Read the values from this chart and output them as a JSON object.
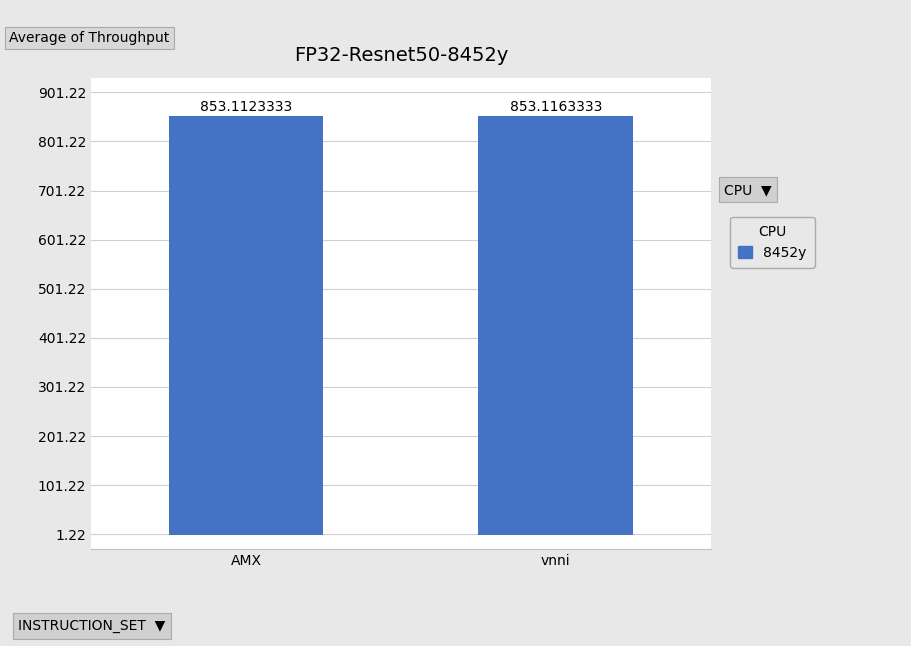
{
  "title": "FP32-Resnet50-8452y",
  "categories": [
    "AMX",
    "vnni"
  ],
  "values": [
    853.1123333,
    853.1163333
  ],
  "bar_color": "#4472C4",
  "ylabel_label": "Average of Throughput",
  "yticks": [
    1.22,
    101.22,
    201.22,
    301.22,
    401.22,
    501.22,
    601.22,
    701.22,
    801.22,
    901.22
  ],
  "ymin": 1.22,
  "ymax": 901.22,
  "xlabel_label": "INSTRUCTION_SET",
  "legend_label": "8452y",
  "legend_title": "CPU",
  "figure_bg": "#E8E8E8",
  "plot_bg": "#FFFFFF",
  "bar_value_labels": [
    "853.1123333",
    "853.1163333"
  ],
  "title_fontsize": 14,
  "tick_fontsize": 10,
  "label_fontsize": 10,
  "bar_width": 0.25,
  "bar_positions": [
    0.25,
    0.75
  ]
}
